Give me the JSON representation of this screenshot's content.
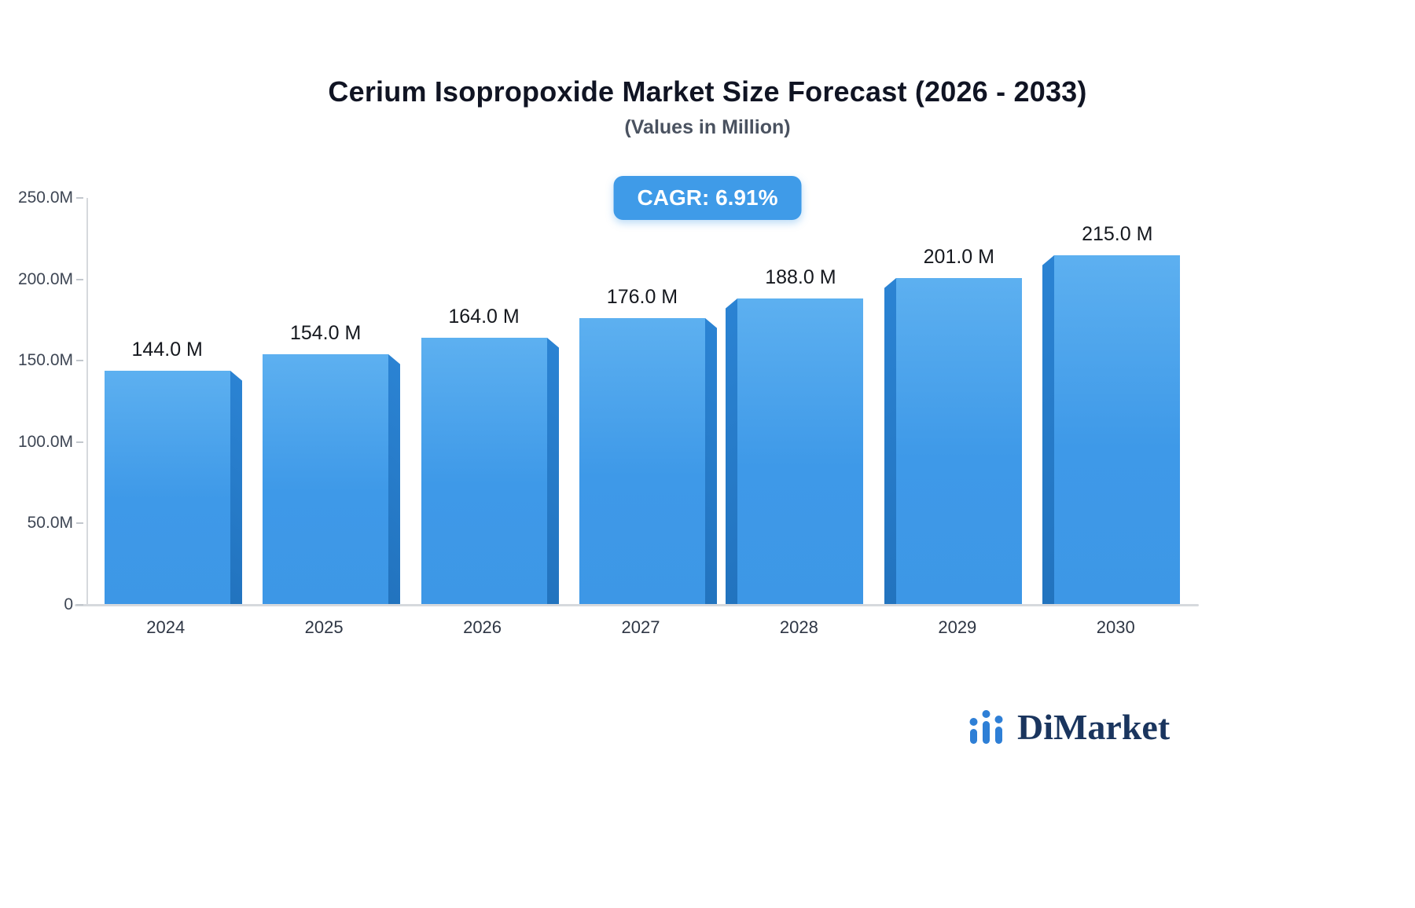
{
  "header": {
    "title": "Cerium Isopropoxide Market Size Forecast (2026 - 2033)",
    "subtitle": "(Values in Million)",
    "cagr_badge": "CAGR: 6.91%"
  },
  "logo": {
    "text": "DiMarket",
    "icon": "bar-chart-icon"
  },
  "colors": {
    "bar_face_top": "#5DB0F0",
    "bar_face": "#3D99E8",
    "bar_side": "#2273BE",
    "badge_bg": "#3F9BE8",
    "axis_line": "#D6D9DD",
    "logo_text": "#1A355E",
    "logo_icon": "#2E7FD6"
  },
  "chart_data": {
    "type": "bar",
    "title": "Cerium Isopropoxide Market Size Forecast (2026 - 2033)",
    "subtitle": "(Values in Million)",
    "cagr": "6.91%",
    "unit": "Million",
    "categories": [
      "2024",
      "2025",
      "2026",
      "2027",
      "2028",
      "2029",
      "2030"
    ],
    "values": [
      144.0,
      154.0,
      164.0,
      176.0,
      188.0,
      201.0,
      215.0
    ],
    "value_labels": [
      "144.0 M",
      "154.0 M",
      "164.0 M",
      "176.0 M",
      "188.0 M",
      "201.0 M",
      "215.0 M"
    ],
    "xlabel": "",
    "ylabel": "",
    "ylim": [
      0,
      250
    ],
    "yticks": [
      0,
      50,
      100,
      150,
      200,
      250
    ],
    "ytick_labels": [
      "0",
      "50.0M",
      "100.0M",
      "150.0M",
      "200.0M",
      "250.0M"
    ],
    "grid": false,
    "legend": false
  }
}
